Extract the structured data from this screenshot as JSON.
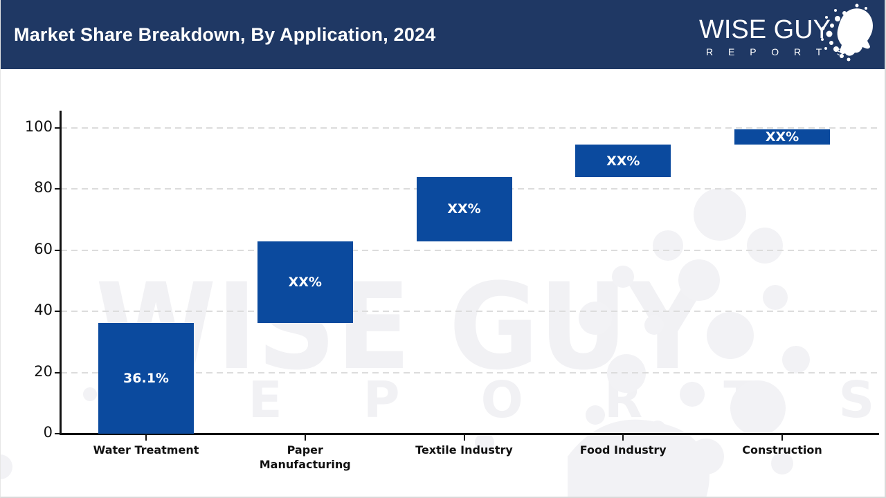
{
  "header": {
    "title": "Market Share Breakdown, By Application, 2024",
    "bg_color": "#1f3864",
    "logo": {
      "name": "WISE GUY",
      "sub_spaced": "R E P O R T S"
    }
  },
  "watermark": {
    "line1": "WISE GUY",
    "line2": "R E P O R T S"
  },
  "chart_data": {
    "type": "bar",
    "subtype": "waterfall",
    "title": "Market Share Breakdown, By Application, 2024",
    "categories": [
      "Water Treatment",
      "Paper Manufacturing",
      "Textile Industry",
      "Food Industry",
      "Construction"
    ],
    "category_lines": [
      [
        "Water Treatment"
      ],
      [
        "Paper",
        "Manufacturing"
      ],
      [
        "Textile Industry"
      ],
      [
        "Food Industry"
      ],
      [
        "Construction"
      ]
    ],
    "bar_labels": [
      "36.1%",
      "XX%",
      "XX%",
      "XX%",
      "XX%"
    ],
    "segments": [
      {
        "start": 0,
        "end": 36.1
      },
      {
        "start": 36.1,
        "end": 63
      },
      {
        "start": 63,
        "end": 84
      },
      {
        "start": 84,
        "end": 94.5
      },
      {
        "start": 94.5,
        "end": 99.5
      }
    ],
    "y_ticks": [
      0,
      20,
      40,
      60,
      80,
      100
    ],
    "ylim": [
      0,
      105
    ],
    "xlabel": "",
    "ylabel": "",
    "grid": true,
    "grid_style": "dashed",
    "legend": "none",
    "bar_color": "#0b4a9e",
    "bar_label_color": "#ffffff"
  }
}
